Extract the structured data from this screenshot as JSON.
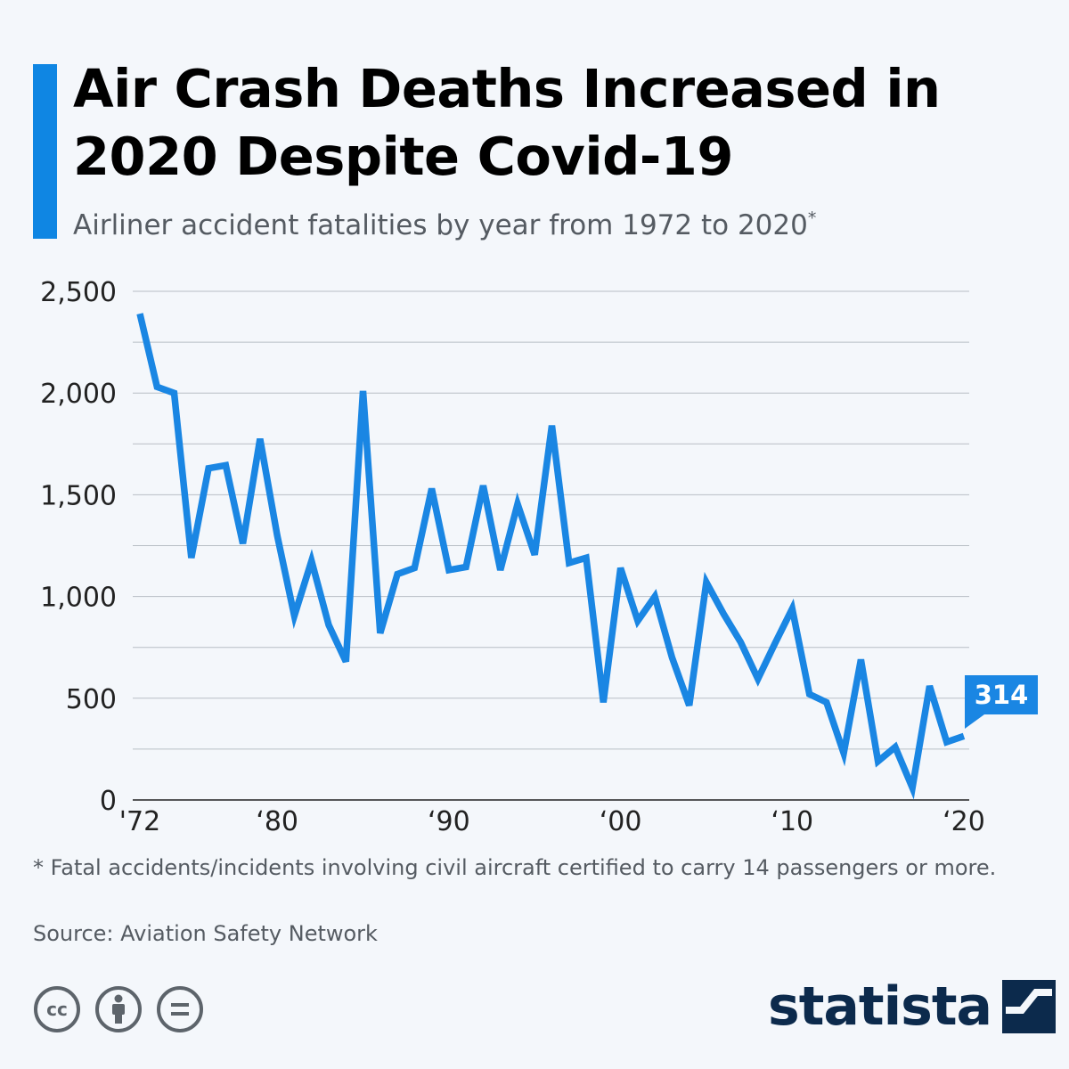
{
  "header": {
    "title": "Air Crash Deaths Increased in 2020 Despite Covid-19",
    "subtitle": "Airliner accident fatalities by year from 1972 to 2020",
    "subtitle_marker": "*"
  },
  "chart_data": {
    "type": "line",
    "title": "Air Crash Deaths Increased in 2020 Despite Covid-19",
    "subtitle": "Airliner accident fatalities by year from 1972 to 2020*",
    "xlabel": "",
    "ylabel": "",
    "ylim": [
      0,
      2500
    ],
    "y_ticks": [
      0,
      500,
      1000,
      1500,
      2000,
      2500
    ],
    "y_tick_labels": [
      "0",
      "500",
      "1,000",
      "1,500",
      "2,000",
      "2,500"
    ],
    "x_ticks": [
      1972,
      1980,
      1990,
      2000,
      2010,
      2020
    ],
    "x_tick_labels": [
      "'72",
      "‘80",
      "‘90",
      "‘00",
      "‘10",
      "‘20"
    ],
    "grid": true,
    "color": "#1a86e3",
    "x": [
      1972,
      1973,
      1974,
      1975,
      1976,
      1977,
      1978,
      1979,
      1980,
      1981,
      1982,
      1983,
      1984,
      1985,
      1986,
      1987,
      1988,
      1989,
      1990,
      1991,
      1992,
      1993,
      1994,
      1995,
      1996,
      1997,
      1998,
      1999,
      2000,
      2001,
      2002,
      2003,
      2004,
      2005,
      2006,
      2007,
      2008,
      2009,
      2010,
      2011,
      2012,
      2013,
      2014,
      2015,
      2016,
      2017,
      2018,
      2019,
      2020
    ],
    "values": [
      2390,
      2030,
      2000,
      1190,
      1630,
      1645,
      1260,
      1775,
      1300,
      905,
      1175,
      860,
      680,
      2010,
      820,
      1110,
      1140,
      1530,
      1130,
      1145,
      1545,
      1130,
      1455,
      1205,
      1840,
      1165,
      1190,
      480,
      1140,
      880,
      1000,
      700,
      465,
      1070,
      915,
      775,
      595,
      770,
      940,
      520,
      480,
      230,
      690,
      190,
      260,
      60,
      560,
      285,
      314
    ],
    "annotation": {
      "year": 2020,
      "value": 314,
      "label": "314"
    }
  },
  "notes": {
    "footnote": "* Fatal accidents/incidents involving civil aircraft certified to carry 14 passengers or more.",
    "source": "Source: Aviation Safety Network"
  },
  "branding": {
    "name": "statista",
    "license_icons": [
      "cc-icon",
      "attribution-icon",
      "no-derivatives-icon"
    ]
  }
}
